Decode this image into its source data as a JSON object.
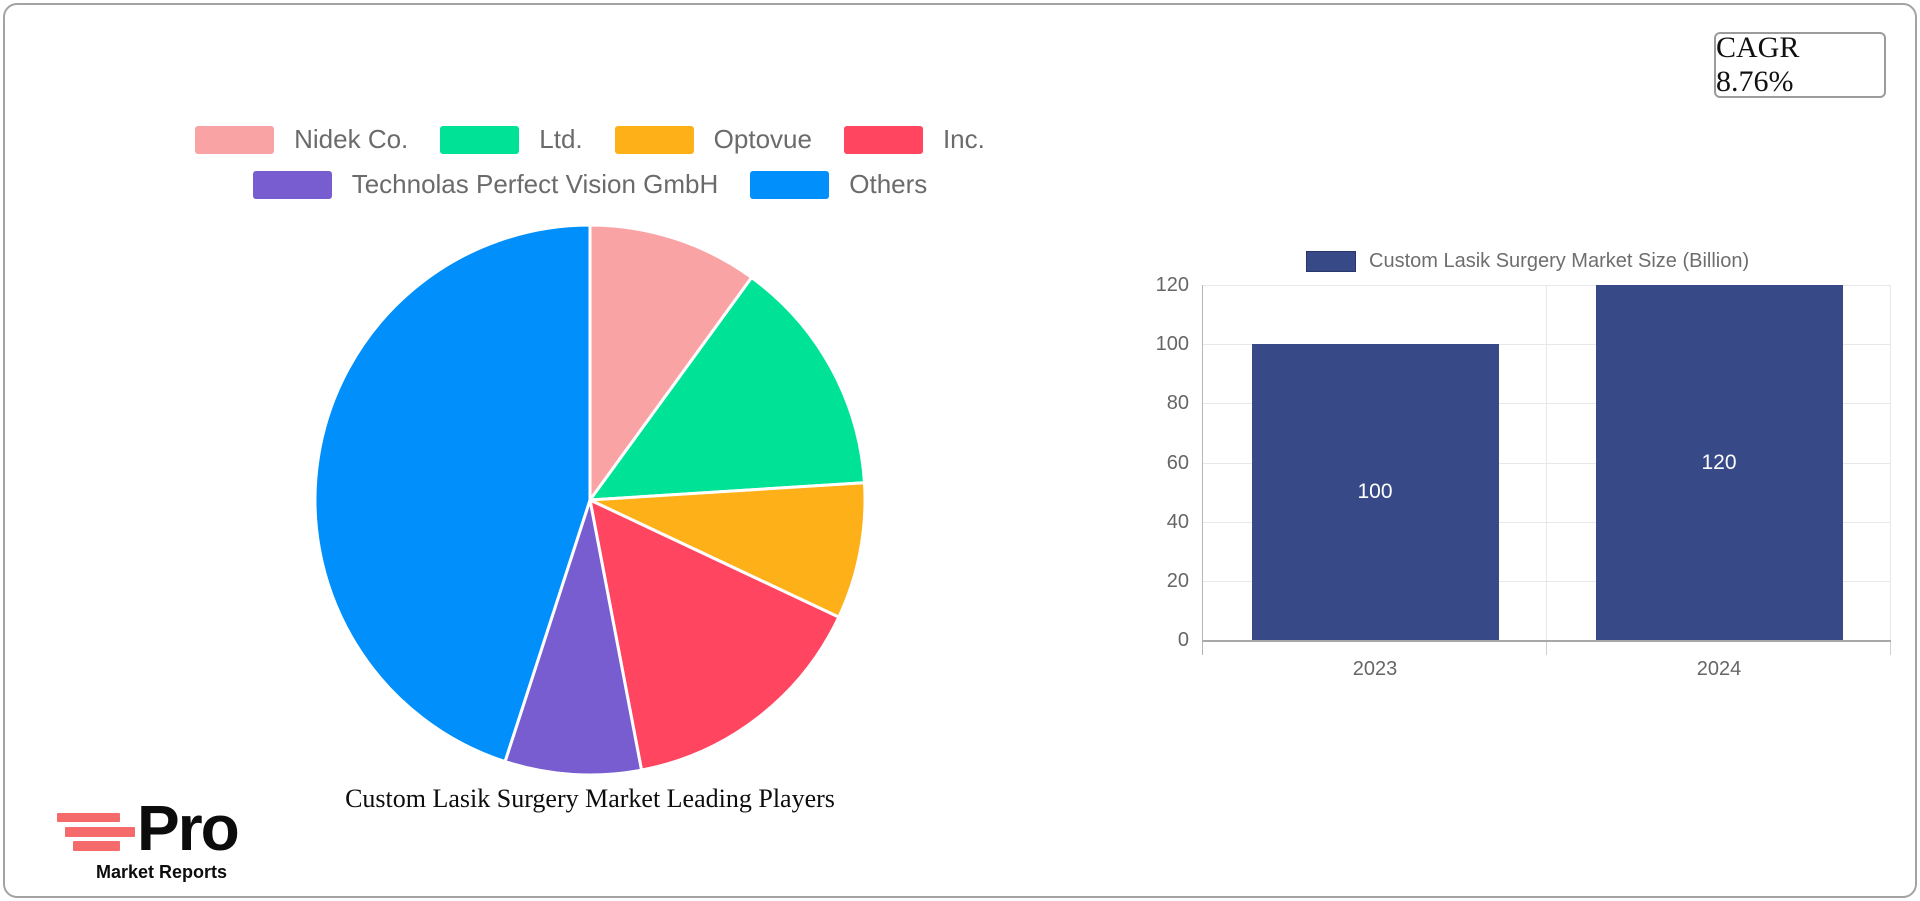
{
  "cagr_badge": {
    "label": "CAGR 8.76%"
  },
  "logo": {
    "title": "Pro",
    "subtitle": "Market Reports",
    "bar_color": "#f56a6a",
    "text_color": "#0c0c0c"
  },
  "chart_data": [
    {
      "type": "pie",
      "title": "Custom Lasik Surgery Market Leading Players",
      "labels": [
        "Nidek Co.",
        "Ltd.",
        "Optovue",
        "Inc.",
        "Technolas Perfect Vision GmbH",
        "Others"
      ],
      "values": [
        10,
        14,
        8,
        15,
        8,
        45
      ],
      "colors": [
        "#F9A3A4",
        "#00E396",
        "#FEB019",
        "#FF4560",
        "#775DD0",
        "#008FFB"
      ],
      "legend_rows": [
        [
          0,
          1,
          2,
          3
        ],
        [
          4,
          5
        ]
      ],
      "legend_position": "top",
      "legend_text_color": "#6b6b6b",
      "start_angle_deg": 0,
      "slice_stroke": "#ffffff"
    },
    {
      "type": "bar",
      "categories": [
        "2023",
        "2024"
      ],
      "series": [
        {
          "name": "Custom Lasik Surgery Market Size (Billion)",
          "values": [
            100,
            120
          ]
        }
      ],
      "ylim": [
        0,
        120
      ],
      "ytick_step": 20,
      "bar_color": "#374A87",
      "value_label_color": "#ffffff",
      "axis_text_color": "#666666",
      "grid": true,
      "legend_position": "top"
    }
  ]
}
